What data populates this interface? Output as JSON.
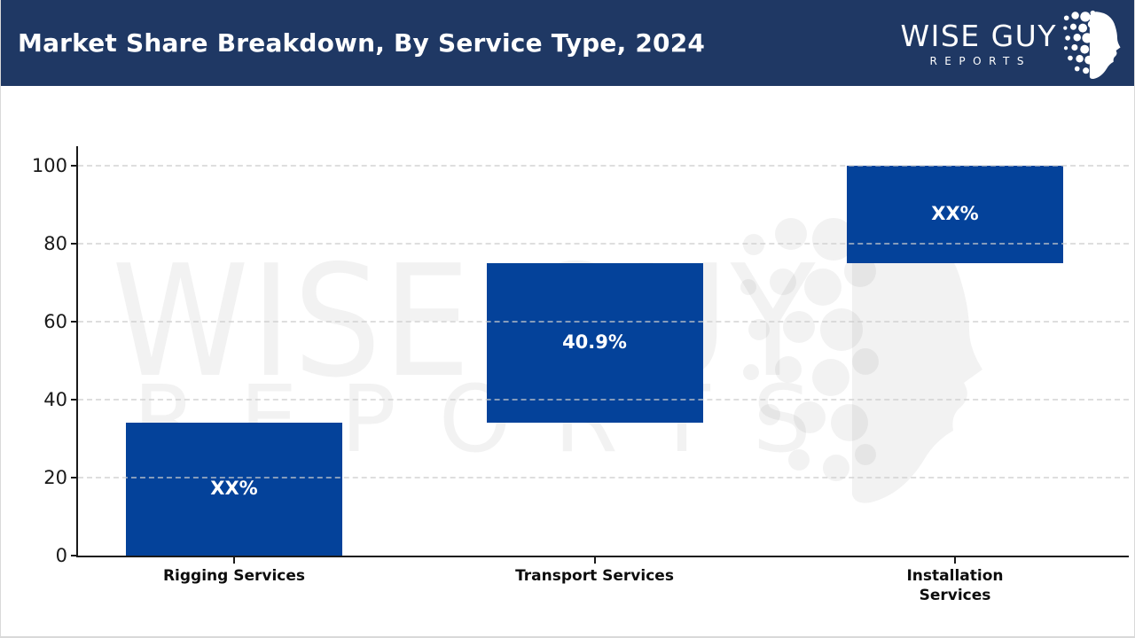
{
  "header": {
    "title": "Market Share Breakdown, By Service Type, 2024",
    "logo": {
      "line1": "WISE GUY",
      "line2": "REPORTS"
    }
  },
  "watermark": {
    "line1": "WISE GUY",
    "line2": "REPORTS"
  },
  "chart_data": {
    "type": "bar",
    "subtype": "waterfall",
    "title": "Market Share Breakdown, By Service Type, 2024",
    "categories": [
      "Rigging Services",
      "Transport Services",
      "Installation\nServices"
    ],
    "series": [
      {
        "name": "Market Share %",
        "base": [
          0,
          34.1,
          75.0
        ],
        "values": [
          34.1,
          40.9,
          25.0
        ]
      }
    ],
    "bar_labels": [
      "XX%",
      "40.9%",
      "XX%"
    ],
    "xlabel": "",
    "ylabel": "",
    "ylim": [
      0,
      100
    ],
    "yticks": [
      0,
      20,
      40,
      60,
      80,
      100
    ],
    "grid": "horizontal-dashed-over-bars",
    "legend": false,
    "colors": {
      "bar": "#04429a",
      "bar_label": "#ffffff",
      "header_bg": "#1f3864",
      "header_text": "#ffffff",
      "axis": "#1a1a1a",
      "grid": "#dcdcdc"
    }
  }
}
